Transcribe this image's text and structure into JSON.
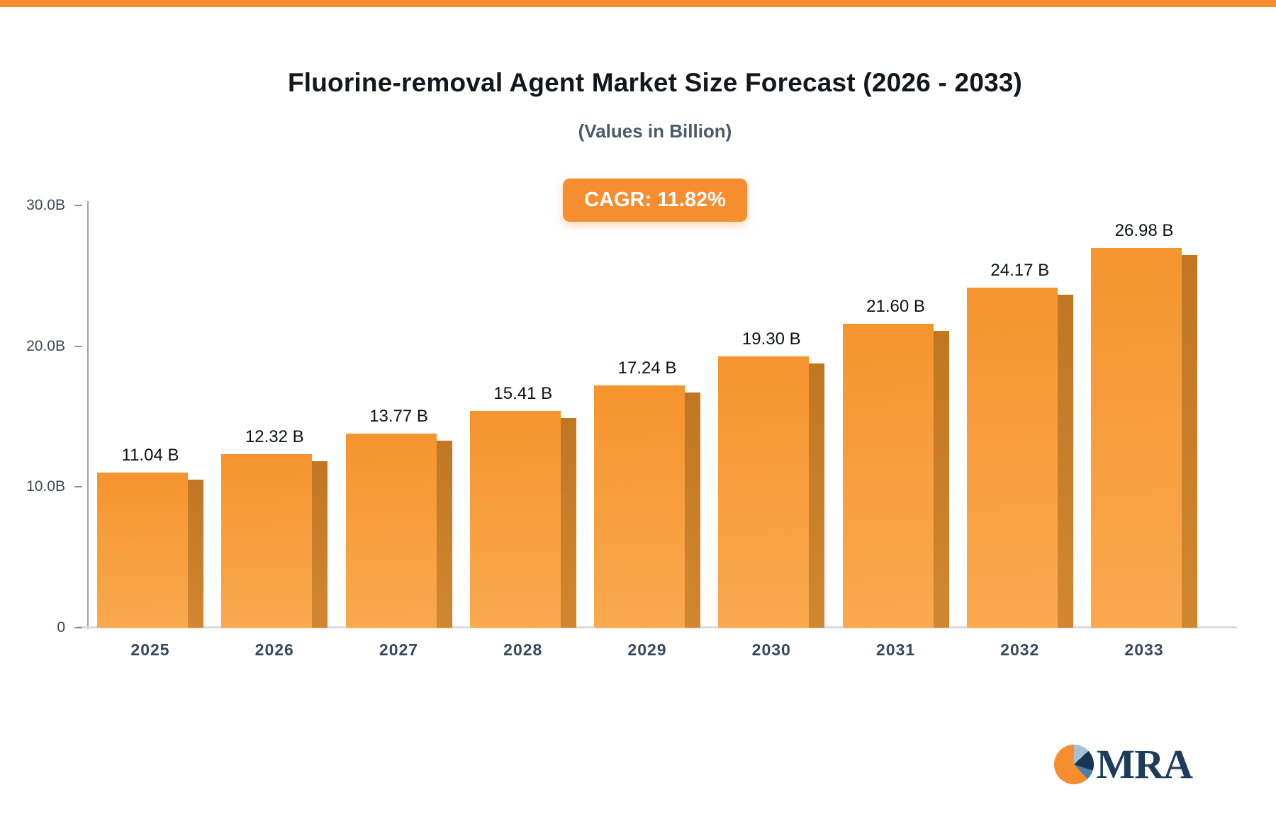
{
  "brand": {
    "accent": "#f68d2e",
    "logo_text": "MRA",
    "logo_colors": {
      "orange": "#f68d2e",
      "navy": "#16374f",
      "steel": "#4d7fa8"
    }
  },
  "header": {
    "title": "Fluorine-removal Agent Market Size Forecast (2026 - 2033)",
    "subtitle": "(Values in Billion)",
    "cagr_badge": "CAGR: 11.82%"
  },
  "chart_data": {
    "type": "bar",
    "title": "Fluorine-removal Agent Market Size Forecast (2026 - 2033)",
    "subtitle": "(Values in Billion)",
    "cagr_percent": 11.82,
    "unit": "Billion",
    "categories": [
      "2025",
      "2026",
      "2027",
      "2028",
      "2029",
      "2030",
      "2031",
      "2032",
      "2033"
    ],
    "values": [
      11.04,
      12.32,
      13.77,
      15.41,
      17.24,
      19.3,
      21.6,
      24.17,
      26.98
    ],
    "value_labels": [
      "11.04 B",
      "12.32 B",
      "13.77 B",
      "15.41 B",
      "17.24 B",
      "19.30 B",
      "21.60 B",
      "24.17 B",
      "26.98 B"
    ],
    "xlabel": "",
    "ylabel": "",
    "ylim": [
      0,
      30
    ],
    "yticks": [
      {
        "value": 0,
        "label": "0"
      },
      {
        "value": 10,
        "label": "10.0B"
      },
      {
        "value": 20,
        "label": "20.0B"
      },
      {
        "value": 30,
        "label": "30.0B"
      }
    ],
    "grid": false,
    "legend": false,
    "colors": {
      "bar_top": "#f6942f",
      "bar_bottom": "#f9a94f",
      "bar_side_top": "#c17622",
      "bar_side_bottom": "#d1862f"
    }
  }
}
